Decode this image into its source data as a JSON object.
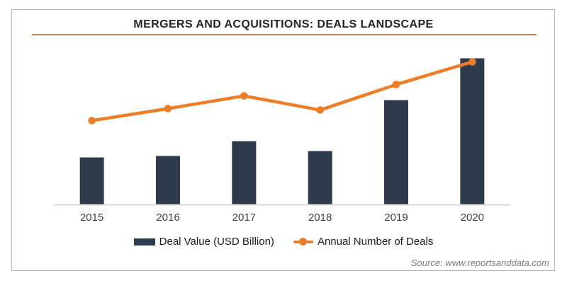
{
  "header": {
    "title": "MERGERS AND ACQUISITIONS: DEALS LANDSCAPE"
  },
  "chart_data": {
    "type": "combo (bar + line)",
    "title": "MERGERS AND ACQUISITIONS: DEALS LANDSCAPE",
    "categories": [
      "2015",
      "2016",
      "2017",
      "2018",
      "2019",
      "2020"
    ],
    "series": [
      {
        "name": "Deal Value (USD Billion)",
        "type": "bar",
        "color": "#2e3b4d",
        "values": [
          28.7,
          29.6,
          38.7,
          32.6,
          63.9,
          89.6
        ]
      },
      {
        "name": "Annual Number of Deals",
        "type": "line",
        "color": "#ee7d28",
        "values": [
          51.3,
          58.7,
          66.5,
          57.8,
          73.5,
          87.4
        ]
      }
    ],
    "value_axis_visible": false,
    "value_units": "relative height, % of plot area (chart shows no numeric value axis)",
    "xlabel": "",
    "ylabel": "",
    "grid": false,
    "legend_position": "bottom"
  },
  "footer": {
    "source": "Source: www.reportsanddata.com"
  },
  "colors": {
    "bar": "#2e3b4d",
    "line": "#ee7d28",
    "title_rule": "#c8814e",
    "axis_line": "#d9d9d9",
    "frame_border": "#b7b7b7"
  }
}
